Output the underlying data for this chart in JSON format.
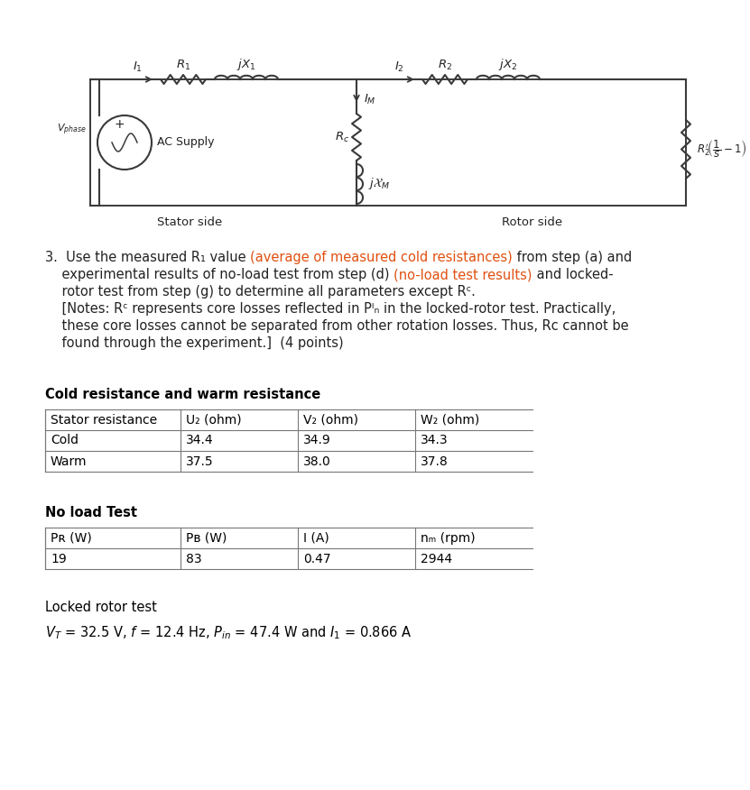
{
  "bg_color": "#ffffff",
  "wire_color": "#3a3a3a",
  "table1_title": "Cold resistance and warm resistance",
  "table1_headers": [
    "Stator resistance",
    "U₂ (ohm)",
    "V₂ (ohm)",
    "W₂ (ohm)"
  ],
  "table1_rows": [
    [
      "Cold",
      "34.4",
      "34.9",
      "34.3"
    ],
    [
      "Warm",
      "37.5",
      "38.0",
      "37.8"
    ]
  ],
  "table2_title": "No load Test",
  "table2_headers": [
    "Pʀ (W)",
    "Pʙ (W)",
    "I (A)",
    "nₘ (rpm)"
  ],
  "table2_rows": [
    [
      "19",
      "83",
      "0.47",
      "2944"
    ]
  ],
  "locked_rotor_title": "Locked rotor test",
  "para3_lines": [
    "3.  Use the measured R₁ value (average of measured cold resistances) from step (a) and",
    "    experimental results of no-load test from step (d) (no-load test results) and locked-",
    "    rotor test from step (g) to determine all parameters except Rᶜ.",
    "    [Notes: Rᶜ represents core losses reflected in Pᴵₙ in the locked-rotor test. Practically,",
    "    these core losses cannot be separated from other rotation losses. Thus, Rc cannot be",
    "    found through the experiment.]  (4 points)"
  ],
  "orange_phrases": [
    "(average of measured cold resistances)",
    "(no-load test results)"
  ],
  "orange_color": "#e05010",
  "black_color": "#222222"
}
